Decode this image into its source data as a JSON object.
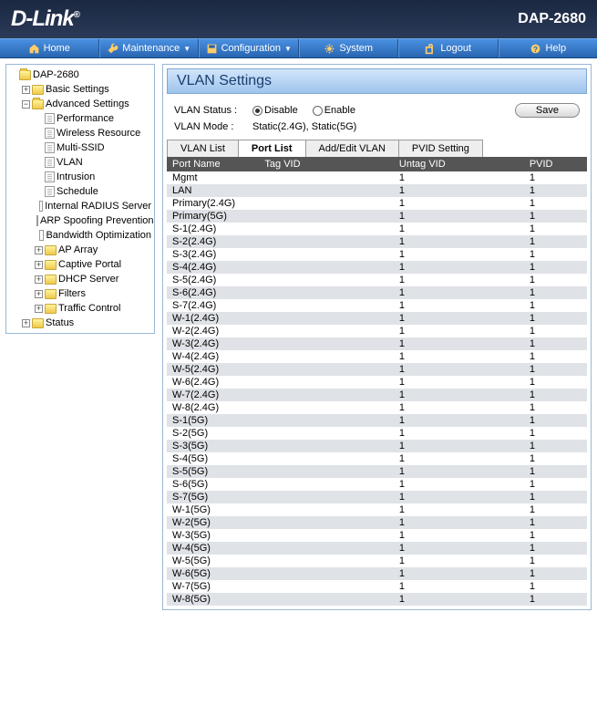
{
  "header": {
    "logo": "D-Link",
    "model": "DAP-2680"
  },
  "menu": {
    "home": "Home",
    "maintenance": "Maintenance",
    "configuration": "Configuration",
    "system": "System",
    "logout": "Logout",
    "help": "Help"
  },
  "tree": {
    "root": "DAP-2680",
    "basic": "Basic Settings",
    "advanced": "Advanced Settings",
    "adv": {
      "performance": "Performance",
      "wireless": "Wireless Resource",
      "multissid": "Multi-SSID",
      "vlan": "VLAN",
      "intrusion": "Intrusion",
      "schedule": "Schedule",
      "radius": "Internal RADIUS Server",
      "arp": "ARP Spoofing Prevention",
      "bandwidth": "Bandwidth Optimization",
      "aparray": "AP Array",
      "captive": "Captive Portal",
      "dhcp": "DHCP Server",
      "filters": "Filters",
      "traffic": "Traffic Control"
    },
    "status": "Status"
  },
  "page": {
    "title": "VLAN Settings",
    "vlanStatusLabel": "VLAN Status",
    "vlanModeLabel": "VLAN Mode",
    "vlanModeValue": "Static(2.4G), Static(5G)",
    "disable": "Disable",
    "enable": "Enable",
    "save": "Save",
    "selectedStatus": "disable",
    "tabs": {
      "vlanlist": "VLAN List",
      "portlist": "Port List",
      "addedit": "Add/Edit VLAN",
      "pvid": "PVID Setting"
    },
    "activeTab": "portlist",
    "table": {
      "headers": {
        "port": "Port Name",
        "tag": "Tag VID",
        "untag": "Untag VID",
        "pvid": "PVID"
      },
      "rows": [
        {
          "port": "Mgmt",
          "tag": "",
          "untag": "1",
          "pvid": "1"
        },
        {
          "port": "LAN",
          "tag": "",
          "untag": "1",
          "pvid": "1"
        },
        {
          "port": "Primary(2.4G)",
          "tag": "",
          "untag": "1",
          "pvid": "1"
        },
        {
          "port": "Primary(5G)",
          "tag": "",
          "untag": "1",
          "pvid": "1"
        },
        {
          "port": "S-1(2.4G)",
          "tag": "",
          "untag": "1",
          "pvid": "1"
        },
        {
          "port": "S-2(2.4G)",
          "tag": "",
          "untag": "1",
          "pvid": "1"
        },
        {
          "port": "S-3(2.4G)",
          "tag": "",
          "untag": "1",
          "pvid": "1"
        },
        {
          "port": "S-4(2.4G)",
          "tag": "",
          "untag": "1",
          "pvid": "1"
        },
        {
          "port": "S-5(2.4G)",
          "tag": "",
          "untag": "1",
          "pvid": "1"
        },
        {
          "port": "S-6(2.4G)",
          "tag": "",
          "untag": "1",
          "pvid": "1"
        },
        {
          "port": "S-7(2.4G)",
          "tag": "",
          "untag": "1",
          "pvid": "1"
        },
        {
          "port": "W-1(2.4G)",
          "tag": "",
          "untag": "1",
          "pvid": "1"
        },
        {
          "port": "W-2(2.4G)",
          "tag": "",
          "untag": "1",
          "pvid": "1"
        },
        {
          "port": "W-3(2.4G)",
          "tag": "",
          "untag": "1",
          "pvid": "1"
        },
        {
          "port": "W-4(2.4G)",
          "tag": "",
          "untag": "1",
          "pvid": "1"
        },
        {
          "port": "W-5(2.4G)",
          "tag": "",
          "untag": "1",
          "pvid": "1"
        },
        {
          "port": "W-6(2.4G)",
          "tag": "",
          "untag": "1",
          "pvid": "1"
        },
        {
          "port": "W-7(2.4G)",
          "tag": "",
          "untag": "1",
          "pvid": "1"
        },
        {
          "port": "W-8(2.4G)",
          "tag": "",
          "untag": "1",
          "pvid": "1"
        },
        {
          "port": "S-1(5G)",
          "tag": "",
          "untag": "1",
          "pvid": "1"
        },
        {
          "port": "S-2(5G)",
          "tag": "",
          "untag": "1",
          "pvid": "1"
        },
        {
          "port": "S-3(5G)",
          "tag": "",
          "untag": "1",
          "pvid": "1"
        },
        {
          "port": "S-4(5G)",
          "tag": "",
          "untag": "1",
          "pvid": "1"
        },
        {
          "port": "S-5(5G)",
          "tag": "",
          "untag": "1",
          "pvid": "1"
        },
        {
          "port": "S-6(5G)",
          "tag": "",
          "untag": "1",
          "pvid": "1"
        },
        {
          "port": "S-7(5G)",
          "tag": "",
          "untag": "1",
          "pvid": "1"
        },
        {
          "port": "W-1(5G)",
          "tag": "",
          "untag": "1",
          "pvid": "1"
        },
        {
          "port": "W-2(5G)",
          "tag": "",
          "untag": "1",
          "pvid": "1"
        },
        {
          "port": "W-3(5G)",
          "tag": "",
          "untag": "1",
          "pvid": "1"
        },
        {
          "port": "W-4(5G)",
          "tag": "",
          "untag": "1",
          "pvid": "1"
        },
        {
          "port": "W-5(5G)",
          "tag": "",
          "untag": "1",
          "pvid": "1"
        },
        {
          "port": "W-6(5G)",
          "tag": "",
          "untag": "1",
          "pvid": "1"
        },
        {
          "port": "W-7(5G)",
          "tag": "",
          "untag": "1",
          "pvid": "1"
        },
        {
          "port": "W-8(5G)",
          "tag": "",
          "untag": "1",
          "pvid": "1"
        }
      ]
    }
  },
  "colors": {
    "headerDark": "#1a2840",
    "menuBlue": "#2865b0",
    "panelBorder": "#9cb7d6",
    "titleGradTop": "#d2e5fb",
    "titleGradBot": "#9ec4ec",
    "tableHeader": "#555555",
    "rowAlt": "#dfe2e6"
  }
}
